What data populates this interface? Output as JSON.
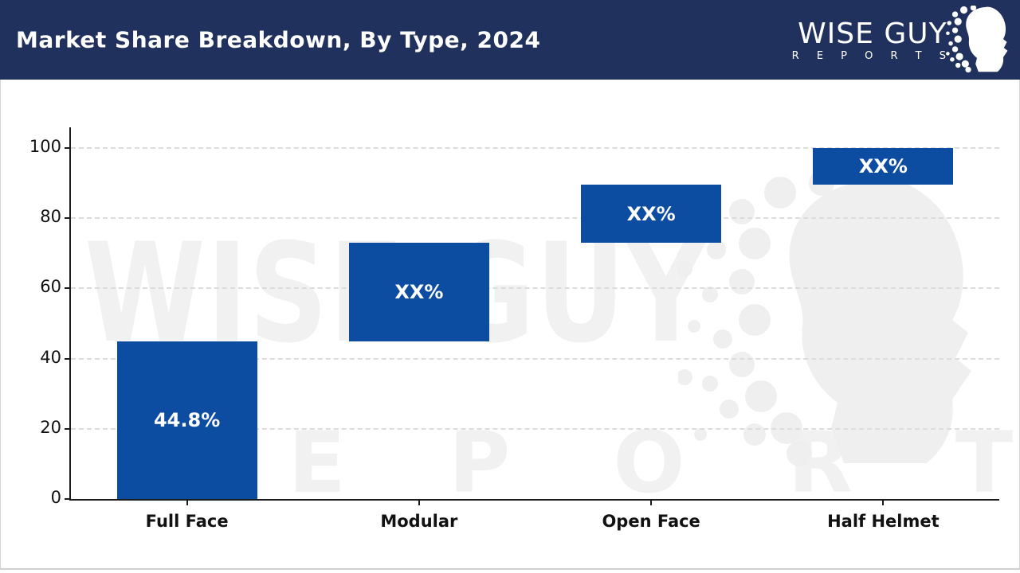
{
  "header": {
    "title": "Market Share Breakdown, By Type, 2024",
    "logo": {
      "line1": "WISE GUY",
      "line2": "R E P O R T S"
    }
  },
  "watermark": {
    "line1": "WISE GUY",
    "line2": "R E P O R T S"
  },
  "icons": {
    "header_logo_face": "head-profile-made-of-dots",
    "watermark_face": "head-profile-made-of-dots"
  },
  "chart_data": {
    "type": "bar",
    "subtype": "waterfall",
    "title": "Market Share Breakdown, By Type, 2024",
    "categories": [
      "Full Face",
      "Modular",
      "Open Face",
      "Half Helmet"
    ],
    "segments": [
      {
        "category": "Full Face",
        "start": 0,
        "end": 44.8,
        "label": "44.8%"
      },
      {
        "category": "Modular",
        "start": 44.8,
        "end": 73.0,
        "label": "XX%"
      },
      {
        "category": "Open Face",
        "start": 73.0,
        "end": 89.5,
        "label": "XX%"
      },
      {
        "category": "Half Helmet",
        "start": 89.5,
        "end": 100,
        "label": "XX%"
      }
    ],
    "xlabel": "",
    "ylabel": "",
    "ylim": [
      0,
      105
    ],
    "yticks": [
      0,
      20,
      40,
      60,
      80,
      100
    ],
    "grid": "horizontal-dashed",
    "legend": "none",
    "bar_color": "#0c4da2",
    "bar_label_color": "#ffffff",
    "axis_color": "#1b1b1b",
    "grid_color": "#dcdcdc",
    "header_bg": "#21315e",
    "watermark_color": "#f1f1f1"
  }
}
